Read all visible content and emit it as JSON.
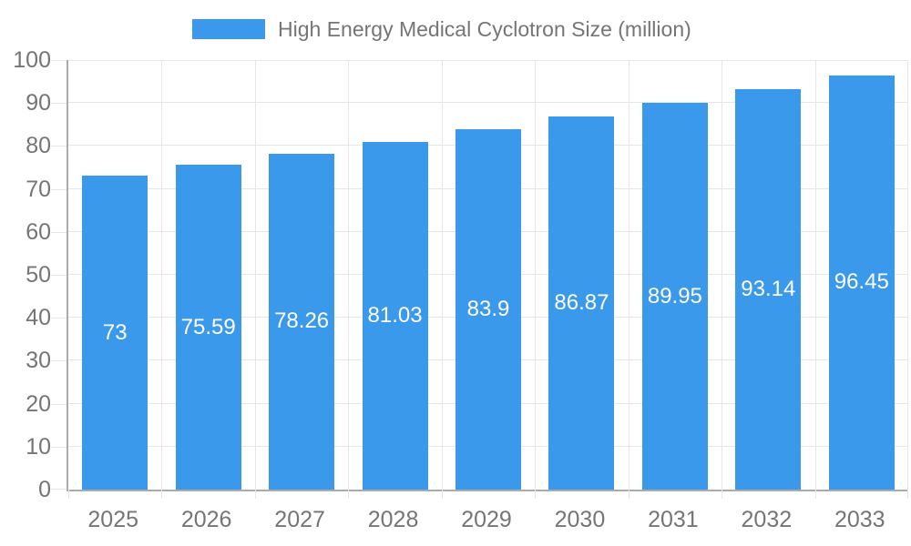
{
  "legend": {
    "label": "High Energy Medical Cyclotron Size (million)"
  },
  "chart_data": {
    "type": "bar",
    "title": "High Energy Medical Cyclotron Size (million)",
    "categories": [
      "2025",
      "2026",
      "2027",
      "2028",
      "2029",
      "2030",
      "2031",
      "2032",
      "2033"
    ],
    "values": [
      73,
      75.59,
      78.26,
      81.03,
      83.9,
      86.87,
      89.95,
      93.14,
      96.45
    ],
    "value_labels": [
      "73",
      "75.59",
      "78.26",
      "81.03",
      "83.9",
      "86.87",
      "89.95",
      "93.14",
      "96.45"
    ],
    "xlabel": "",
    "ylabel": "",
    "ylim": [
      0,
      100
    ],
    "yticks": [
      0,
      10,
      20,
      30,
      40,
      50,
      60,
      70,
      80,
      90,
      100
    ],
    "grid": true,
    "legend_position": "top",
    "colors": {
      "bar": "#3B99EC",
      "axis": "#ababab",
      "grid": "#e6e6e6",
      "tick": "#e6e6e6",
      "label_text": "#757575",
      "value_text": "#ffffff",
      "background": "#ffffff"
    }
  }
}
